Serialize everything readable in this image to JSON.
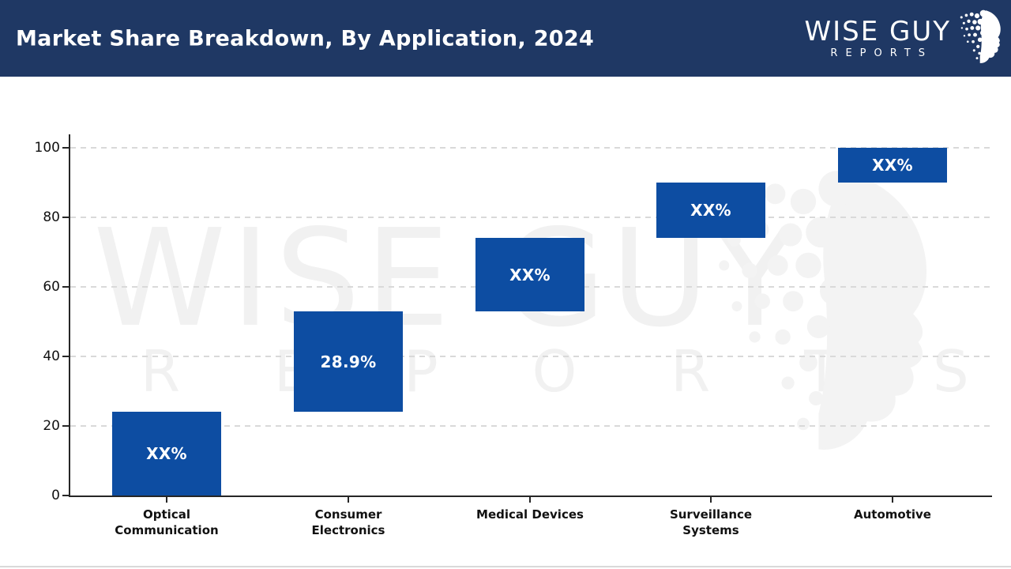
{
  "header": {
    "title": "Market Share Breakdown, By Application, 2024",
    "bg_color": "#1f3864",
    "logo": {
      "line1": "WISE GUY",
      "line2": "REPORTS"
    }
  },
  "watermark": {
    "line1": "WISE GUY",
    "line2": "R E P O R T S",
    "face_icon": "wise-guy-face-icon"
  },
  "chart_data": {
    "type": "bar",
    "subtype": "waterfall",
    "title": "Market Share Breakdown, By Application, 2024",
    "categories": [
      "Optical\nCommunication",
      "Consumer\nElectronics",
      "Medical Devices",
      "Surveillance\nSystems",
      "Automotive"
    ],
    "segments": [
      {
        "category": "Optical Communication",
        "start": 0,
        "end": 24,
        "value_label": "XX%"
      },
      {
        "category": "Consumer Electronics",
        "start": 24,
        "end": 52.9,
        "value_label": "28.9%"
      },
      {
        "category": "Medical Devices",
        "start": 52.9,
        "end": 74.1,
        "value_label": "XX%"
      },
      {
        "category": "Surveillance Systems",
        "start": 74.1,
        "end": 90,
        "value_label": "XX%"
      },
      {
        "category": "Automotive",
        "start": 90,
        "end": 100,
        "value_label": "XX%"
      }
    ],
    "xlabel": "",
    "ylabel": "",
    "ylim": [
      0,
      100
    ],
    "yticks": [
      0,
      20,
      40,
      60,
      80,
      100
    ],
    "grid": "horizontal-dashed",
    "legend": "none",
    "bar_color": "#0d4da2",
    "value_label_color": "#ffffff",
    "axis_color": "#262626"
  }
}
